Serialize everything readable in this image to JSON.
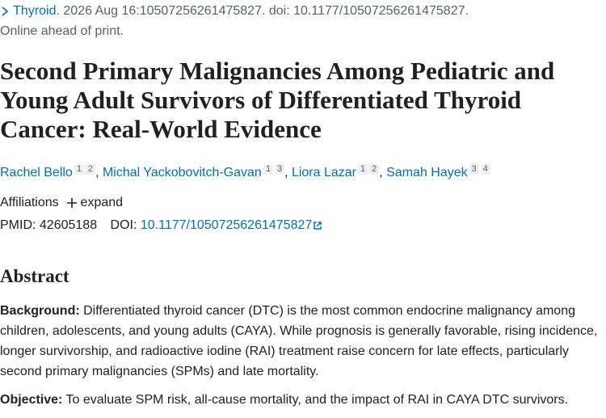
{
  "citation": {
    "journal": "Thyroid",
    "details": ". 2026 Aug 16:10507256261475827. doi: 10.1177/10507256261475827.",
    "status": "Online ahead of print."
  },
  "title": "Second Primary Malignancies Among Pediatric and Young Adult Survivors of Differentiated Thyroid Cancer: Real-World Evidence",
  "authors": [
    {
      "name": "Rachel Bello",
      "affiliations": [
        "1",
        "2"
      ]
    },
    {
      "name": "Michal Yackobovitch-Gavan",
      "affiliations": [
        "1",
        "3"
      ]
    },
    {
      "name": "Liora Lazar",
      "affiliations": [
        "1",
        "2"
      ]
    },
    {
      "name": "Samah Hayek",
      "affiliations": [
        "3",
        "4"
      ]
    }
  ],
  "author_separator": ", ",
  "affiliations": {
    "label": "Affiliations",
    "toggle": "expand"
  },
  "identifiers": {
    "pmid_label": "PMID:",
    "pmid": "42605188",
    "doi_label": "DOI:",
    "doi": "10.1177/10507256261475827"
  },
  "abstract": {
    "heading": "Abstract",
    "sections": [
      {
        "label": "Background:",
        "text": "Differentiated thyroid cancer (DTC) is the most common endocrine malignancy among children, adolescents, and young adults (CAYA). While prognosis is generally favorable, rising incidence, longer survivorship, and radioactive iodine (RAI) treatment raise concern for late effects, particularly second primary malignancies (SPMs) and late mortality."
      },
      {
        "label": "Objective:",
        "text": "To evaluate SPM risk, all-cause mortality, and the impact of RAI in CAYA DTC survivors."
      }
    ]
  }
}
